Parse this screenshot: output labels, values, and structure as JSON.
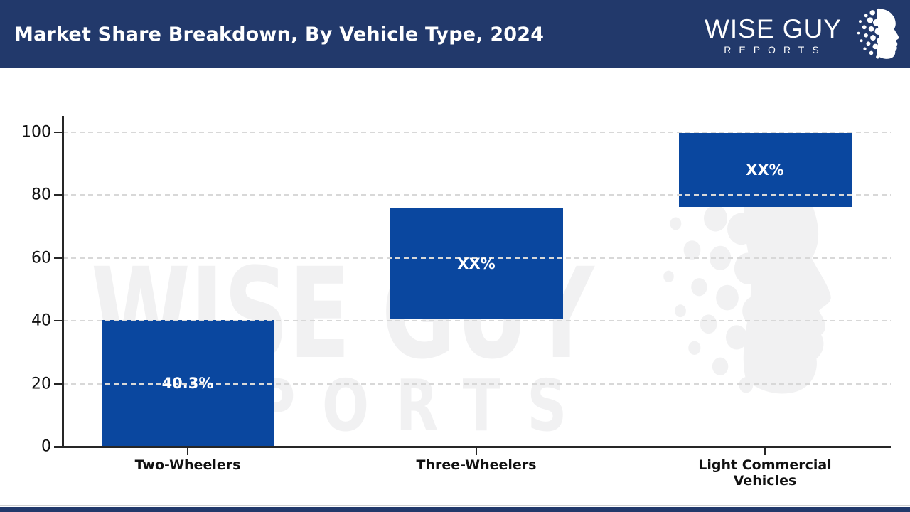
{
  "header": {
    "title": "Market Share Breakdown, By Vehicle Type, 2024",
    "logo": {
      "line1": "WISE GUY",
      "line2": "REPORTS"
    }
  },
  "watermark": {
    "line1": "WISE GUY",
    "line2": "REPORTS"
  },
  "colors": {
    "header_bg": "#22396B",
    "bar": "#0A479F",
    "axis": "#262626",
    "gridline": "#d8d8d8",
    "bar_label": "#ffffff",
    "watermark": "#f1f1f2"
  },
  "chart_data": {
    "type": "bar",
    "variant": "floating-range-bars",
    "title": "Market Share Breakdown, By Vehicle Type, 2024",
    "categories": [
      "Two-Wheelers",
      "Three-Wheelers",
      "Light Commercial Vehicles"
    ],
    "series": [
      {
        "name": "Market share (%)",
        "ranges": [
          [
            0,
            40.3
          ],
          [
            40.4,
            75.9
          ],
          [
            76.2,
            99.7
          ]
        ],
        "labels": [
          "40.3%",
          "XX%",
          "XX%"
        ]
      }
    ],
    "xlabel": "",
    "ylabel": "",
    "ylim": [
      0,
      105
    ],
    "yticks": [
      0,
      20,
      40,
      60,
      80,
      100
    ],
    "grid": "horizontal-dashed",
    "grid_over_bars": true,
    "legend": "none",
    "bar_color": "#0A479F",
    "label_color": "#ffffff"
  }
}
